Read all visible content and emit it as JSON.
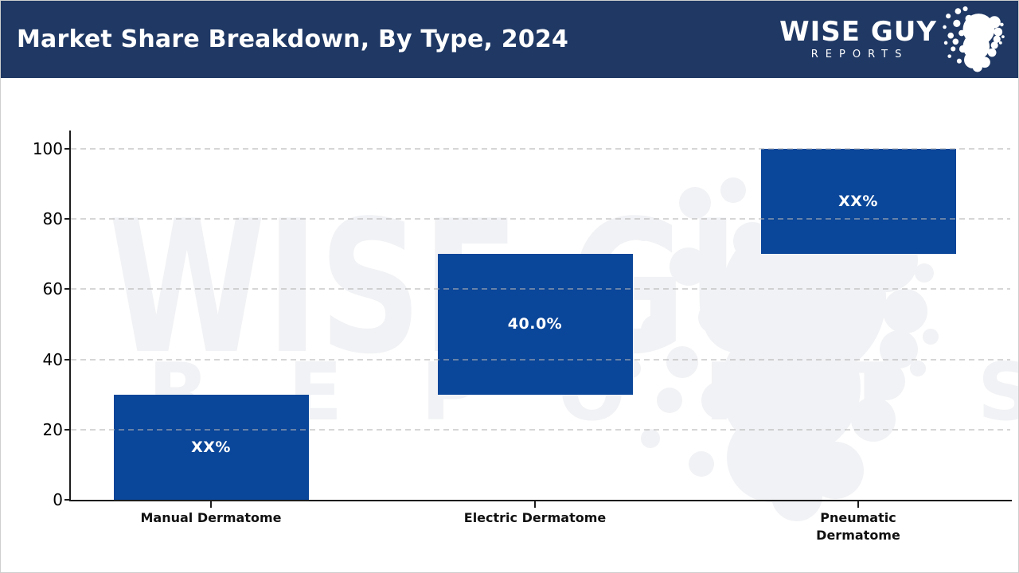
{
  "header": {
    "title": "Market Share Breakdown, By Type, 2024"
  },
  "logo": {
    "line1": "WISE GUY",
    "line2": "REPORTS",
    "icon": "dotted-face-profile"
  },
  "watermark": {
    "line1": "WISE GUY",
    "line2": "R E P O R T S",
    "icon": "dotted-face-profile"
  },
  "chart_data": {
    "type": "bar",
    "variant": "floating-range-bars",
    "title": "Market Share Breakdown, By Type, 2024",
    "categories": [
      "Manual Dermatome",
      "Electric Dermatome",
      "Pneumatic Dermatome"
    ],
    "xtick_labels": [
      "Manual Dermatome",
      "Electric Dermatome",
      "Pneumatic\nDermatome"
    ],
    "segments": [
      {
        "category": "Manual Dermatome",
        "start": 0,
        "end": 30,
        "label": "XX%"
      },
      {
        "category": "Electric Dermatome",
        "start": 30,
        "end": 70,
        "label": "40.0%"
      },
      {
        "category": "Pneumatic Dermatome",
        "start": 70,
        "end": 100,
        "label": "XX%"
      }
    ],
    "ylim": [
      0,
      100
    ],
    "yticks": [
      0,
      20,
      40,
      60,
      80,
      100
    ],
    "xlabel": "",
    "ylabel": "",
    "grid": "dashed-horizontal-over-bars",
    "legend": "none"
  },
  "colors": {
    "header_bg": "#1f3864",
    "bar": "#0a4699",
    "axis": "#1c1c1c",
    "grid": "#bdbdbd",
    "watermark": "#f1f2f5",
    "bar_label_text": "#ffffff",
    "tick_text": "#000000"
  }
}
